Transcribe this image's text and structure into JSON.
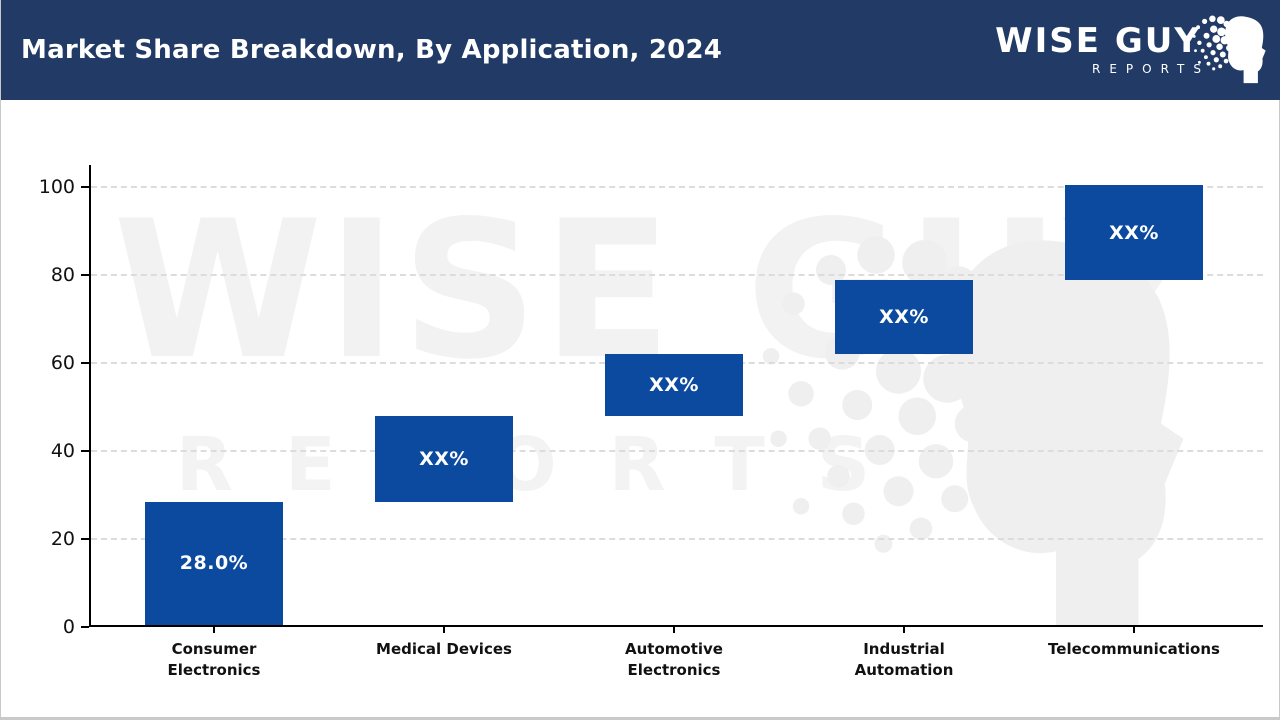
{
  "header": {
    "title": "Market Share Breakdown, By Application, 2024",
    "logo": {
      "line1": "WISE GUY",
      "line2": "REPORTS"
    }
  },
  "watermark": {
    "line1": "WISE GUY",
    "line2": "REPORTS"
  },
  "colors": {
    "header_bg": "#213a66",
    "bar": "#0b4a9e",
    "bar_label": "#ffffff",
    "grid": "#dcdcdc",
    "axis": "#000000",
    "watermark": "#f2f2f2"
  },
  "chart_data": {
    "type": "bar",
    "subtype": "waterfall",
    "title": "Market Share Breakdown, By Application, 2024",
    "categories": [
      "Consumer\nElectronics",
      "Medical Devices",
      "Automotive\nElectronics",
      "Industrial\nAutomation",
      "Telecommunications"
    ],
    "segments": [
      {
        "category": "Consumer Electronics",
        "start": 0,
        "end": 28,
        "label": "28.0%"
      },
      {
        "category": "Medical Devices",
        "start": 28,
        "end": 47.6,
        "label": "XX%"
      },
      {
        "category": "Automotive Electronics",
        "start": 47.6,
        "end": 61.6,
        "label": "XX%"
      },
      {
        "category": "Industrial Automation",
        "start": 61.6,
        "end": 78.4,
        "label": "XX%"
      },
      {
        "category": "Telecommunications",
        "start": 78.4,
        "end": 100,
        "label": "XX%"
      }
    ],
    "xlabel": "",
    "ylabel": "",
    "y_ticks": [
      0,
      20,
      40,
      60,
      80,
      100
    ],
    "ylim": [
      0,
      105
    ],
    "grid": "horizontal-dashed",
    "legend": "none"
  }
}
